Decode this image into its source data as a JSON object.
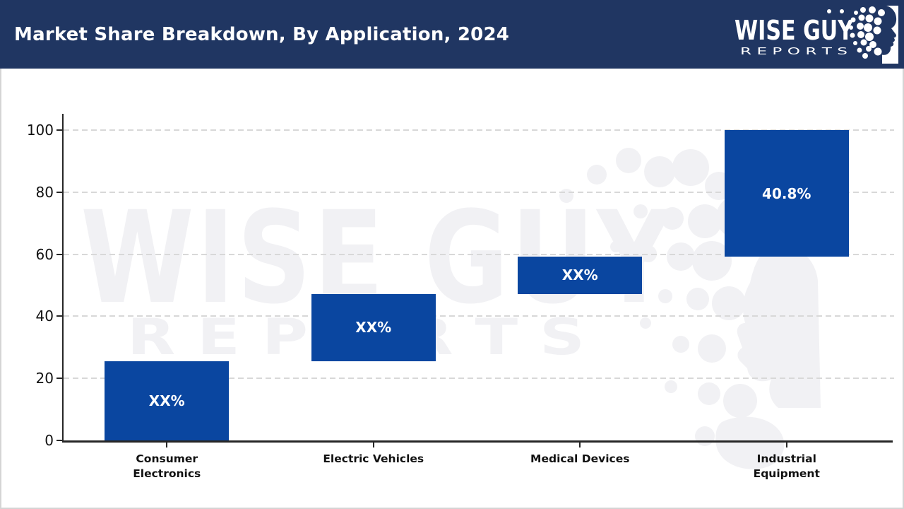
{
  "header": {
    "title": "Market Share Breakdown, By Application, 2024",
    "logo": {
      "line1": "WISE GUY",
      "line2": "R E P O R T S"
    }
  },
  "watermark": {
    "line1": "WISE GUY",
    "line2": "R E P O R T S"
  },
  "chart_data": {
    "type": "bar",
    "subtype": "waterfall",
    "title": "Market Share Breakdown, By Application, 2024",
    "categories": [
      "Consumer\nElectronics",
      "Electric Vehicles",
      "Medical Devices",
      "Industrial\nEquipment"
    ],
    "bars": [
      {
        "category": "Consumer Electronics",
        "start": 0,
        "end": 25.5,
        "value": 25.5,
        "label": "XX%"
      },
      {
        "category": "Electric Vehicles",
        "start": 25.5,
        "end": 47.2,
        "value": 21.7,
        "label": "XX%"
      },
      {
        "category": "Medical Devices",
        "start": 47.2,
        "end": 59.2,
        "value": 12.0,
        "label": "XX%"
      },
      {
        "category": "Industrial Equipment",
        "start": 59.2,
        "end": 100,
        "value": 40.8,
        "label": "40.8%"
      }
    ],
    "xlabel": "",
    "ylabel": "",
    "ylim": [
      0,
      100
    ],
    "yticks": [
      0,
      20,
      40,
      60,
      80,
      100
    ],
    "grid": "horizontal-dashed",
    "legend": "none",
    "bar_color": "#0a46a0"
  },
  "colors": {
    "header_bg": "#203662",
    "bar": "#0a46a0",
    "grid": "#d8d8d8",
    "axis": "#262626",
    "watermark": "#f1f1f4",
    "title_text": "#ffffff"
  }
}
